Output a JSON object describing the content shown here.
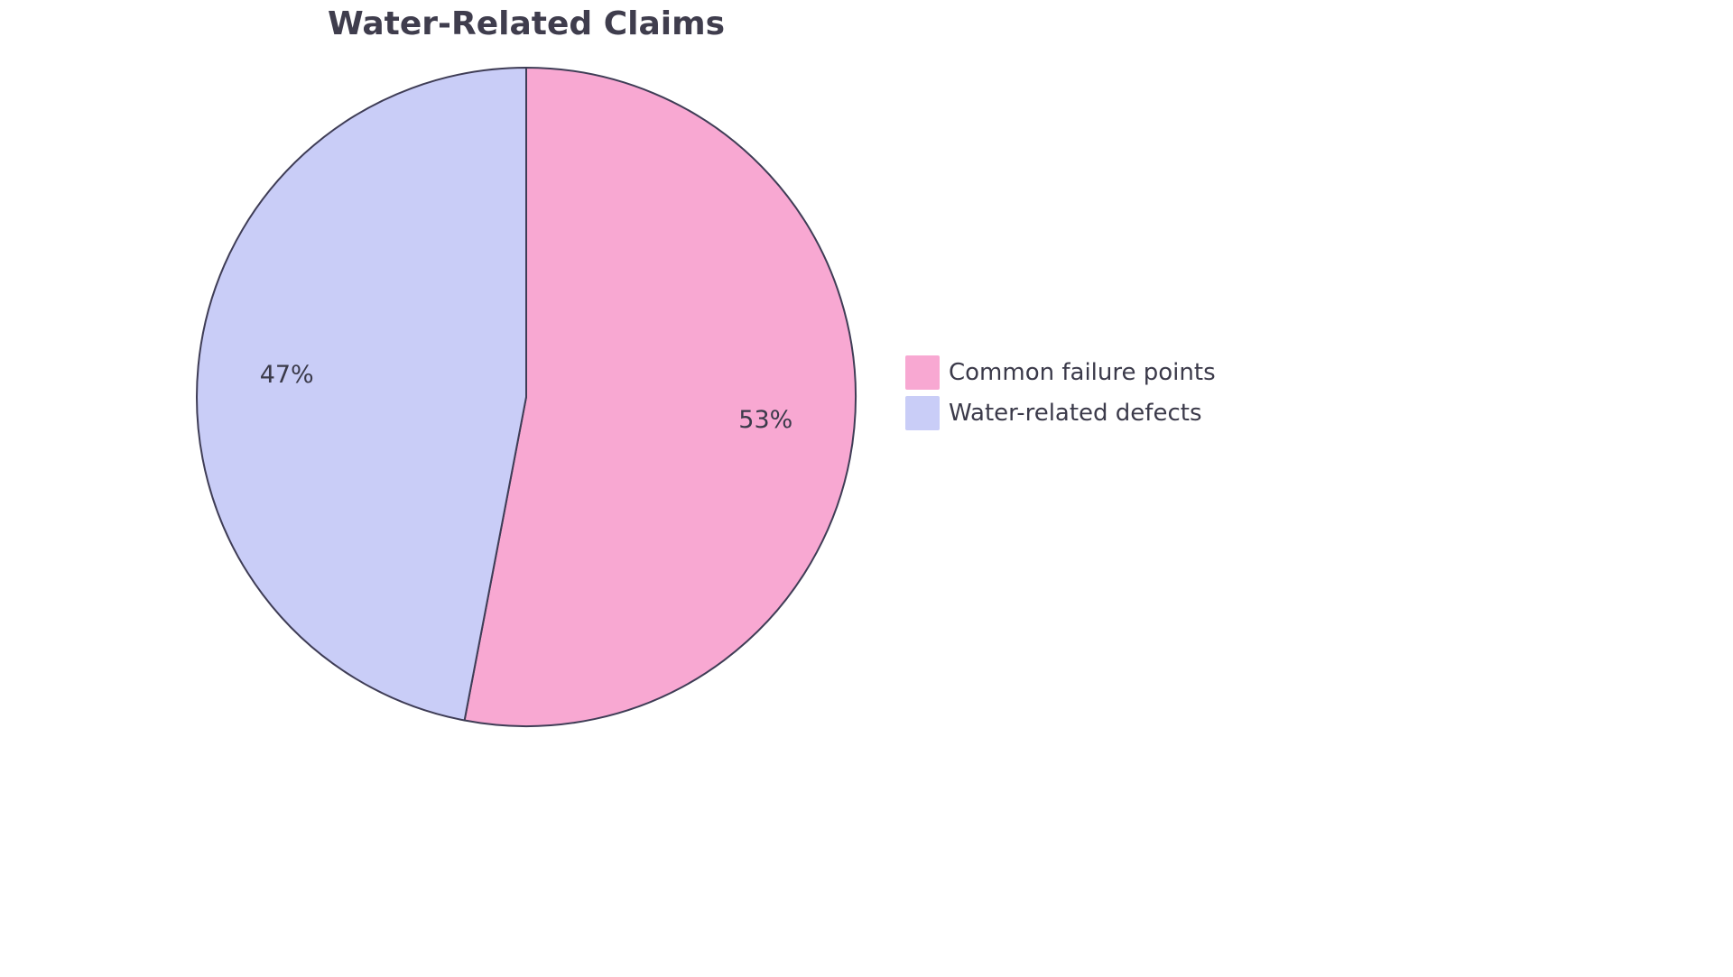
{
  "chart_data": {
    "type": "pie",
    "title": "Water-Related Claims",
    "slices": [
      {
        "label": "Common failure points",
        "value": 53,
        "percent_label": "53%",
        "color": "#F8A8D2"
      },
      {
        "label": "Water-related defects",
        "value": 47,
        "percent_label": "47%",
        "color": "#C9CDF7"
      }
    ],
    "start_at": "top",
    "direction": "clockwise",
    "legend_position": "right",
    "stroke_color": "#3F3D56",
    "label_color": "#3B3A4A",
    "title_color": "#3F3D4D"
  }
}
